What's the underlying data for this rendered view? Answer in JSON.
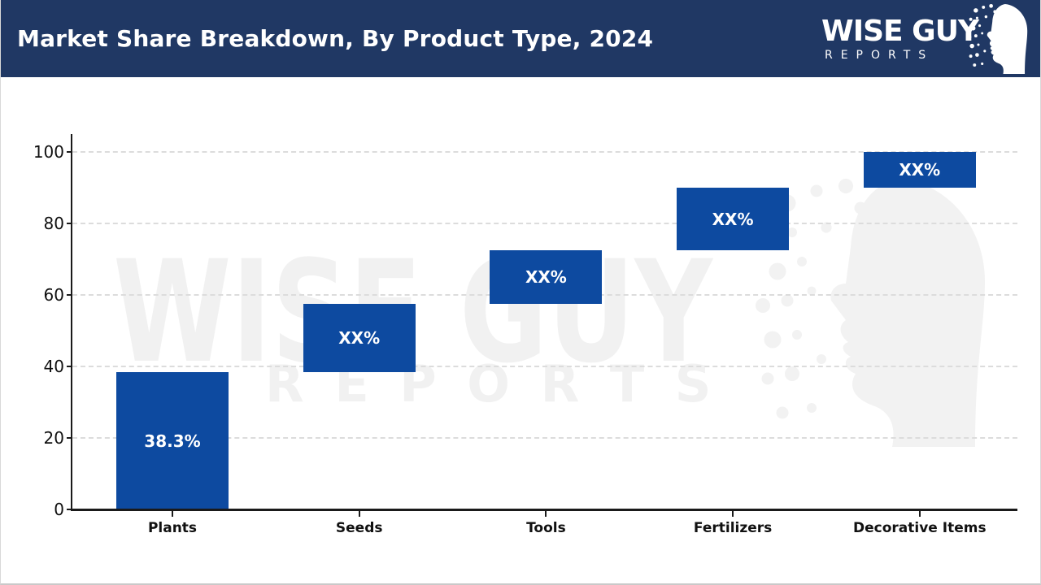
{
  "header": {
    "title": "Market Share Breakdown, By Product Type, 2024",
    "background_color": "#203864",
    "logo": {
      "line1": "WISE GUY",
      "line2": "REPORTS"
    }
  },
  "watermark": {
    "line1": "WISE GUY",
    "line2": "R E P O R T S"
  },
  "chart_data": {
    "type": "bar",
    "subtype": "waterfall",
    "title": "Market Share Breakdown, By Product Type, 2024",
    "categories": [
      "Plants",
      "Seeds",
      "Tools",
      "Fertilizers",
      "Decorative Items"
    ],
    "series": [
      {
        "name": "Market share (%)",
        "segments": [
          {
            "category": "Plants",
            "start": 0,
            "end": 38.3,
            "label": "38.3%"
          },
          {
            "category": "Seeds",
            "start": 38.3,
            "end": 57.5,
            "label": "XX%"
          },
          {
            "category": "Tools",
            "start": 57.5,
            "end": 72.5,
            "label": "XX%"
          },
          {
            "category": "Fertilizers",
            "start": 72.5,
            "end": 90,
            "label": "XX%"
          },
          {
            "category": "Decorative Items",
            "start": 90,
            "end": 100,
            "label": "XX%"
          }
        ]
      }
    ],
    "xlabel": "",
    "ylabel": "",
    "ylim": [
      0,
      105
    ],
    "yticks": [
      0,
      20,
      40,
      60,
      80,
      100
    ],
    "grid": "horizontal-dashed",
    "legend": "none",
    "bar_color": "#0d4aa0",
    "bar_label_color": "#ffffff",
    "axis_color": "#1a1a1a",
    "gridline_color": "#dcdcdc",
    "watermark_color": "#f1f1f1"
  }
}
